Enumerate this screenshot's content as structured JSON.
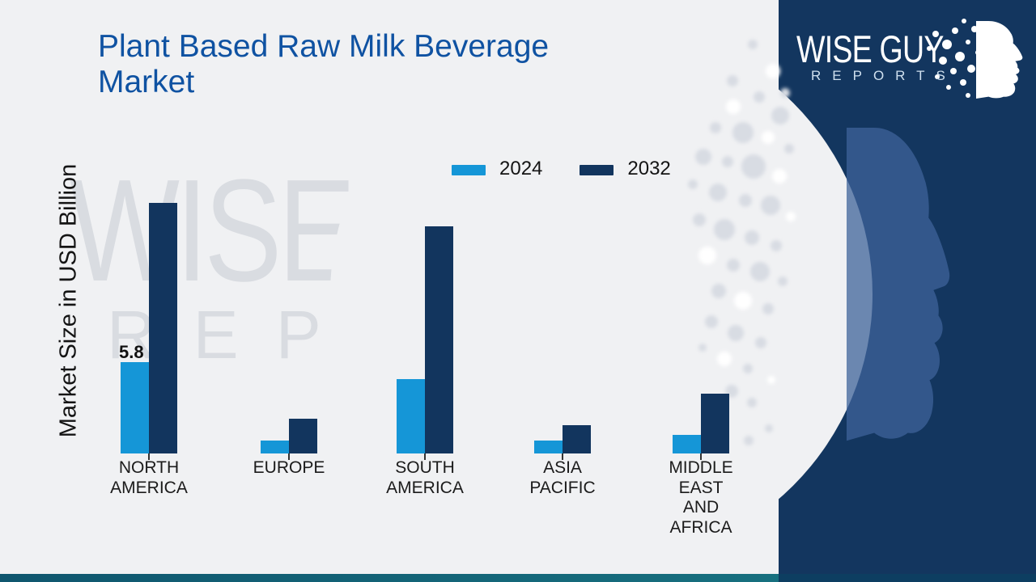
{
  "page": {
    "background": "#f0f1f3",
    "accent_bar_left_color": "#10607a",
    "accent_bar_right_color": "#0d3e61"
  },
  "header": {
    "title_line1": "Plant Based Raw Milk Beverage",
    "title_line2": "Market",
    "title_color": "#0f52a2"
  },
  "watermark": {
    "line1": "WISE GUY",
    "line2": "REPORTS"
  },
  "logo": {
    "brand_top": "WISE GUY",
    "brand_bottom": "REPORTS",
    "panel_color": "#13365f",
    "face_icon": "face-profile-icon"
  },
  "chart_data": {
    "type": "bar",
    "title": "Plant Based Raw Milk Beverage Market",
    "xlabel": "",
    "ylabel": "Market Size in USD Billion",
    "categories": [
      "NORTH AMERICA",
      "EUROPE",
      "SOUTH AMERICA",
      "ASIA PACIFIC",
      "MIDDLE EAST AND AFRICA"
    ],
    "category_lines": [
      [
        "NORTH",
        "AMERICA"
      ],
      [
        "EUROPE"
      ],
      [
        "SOUTH",
        "AMERICA"
      ],
      [
        "ASIA",
        "PACIFIC"
      ],
      [
        "MIDDLE",
        "EAST",
        "AND",
        "AFRICA"
      ]
    ],
    "series": [
      {
        "name": "2024",
        "color": "#1596d7",
        "values": [
          5.8,
          0.8,
          4.7,
          0.8,
          1.2
        ]
      },
      {
        "name": "2032",
        "color": "#12355e",
        "values": [
          15.9,
          2.2,
          14.4,
          1.8,
          3.8
        ]
      }
    ],
    "data_labels": [
      {
        "series": "2024",
        "category": "NORTH AMERICA",
        "text": "5.8"
      }
    ],
    "ylim": [
      0,
      16.5
    ],
    "y_axis_ticks_visible": false,
    "gridlines": false,
    "legend_position": "top"
  }
}
